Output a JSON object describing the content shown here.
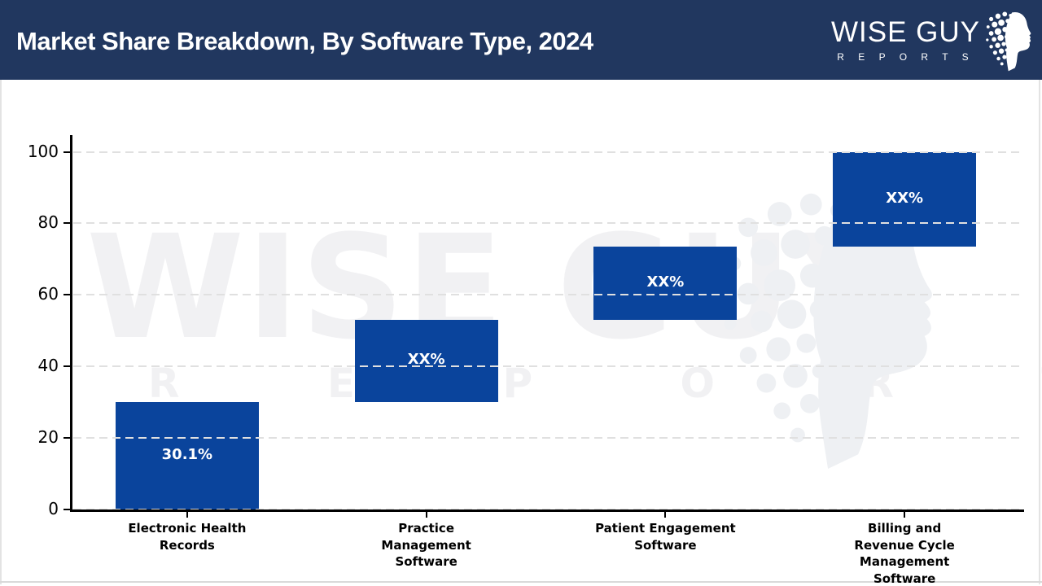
{
  "header": {
    "title": "Market Share Breakdown, By Software Type, 2024",
    "logo": {
      "name": "WISE GUY",
      "sub": "R E P O R T S"
    }
  },
  "watermark": {
    "word": "WISE GUY",
    "sub": "R E P O R T S"
  },
  "chart_data": {
    "type": "bar",
    "subtype": "waterfall",
    "title": "Market Share Breakdown, By Software Type, 2024",
    "categories": [
      "Electronic Health\nRecords",
      "Practice\nManagement\nSoftware",
      "Patient Engagement\nSoftware",
      "Billing and\nRevenue Cycle\nManagement\nSoftware"
    ],
    "segments": [
      {
        "category": "Electronic Health Records",
        "start": 0,
        "end": 30.1,
        "label": "30.1%"
      },
      {
        "category": "Practice Management Software",
        "start": 30.1,
        "end": 53.1,
        "label": "XX%"
      },
      {
        "category": "Patient Engagement Software",
        "start": 53.1,
        "end": 73.5,
        "label": "XX%"
      },
      {
        "category": "Billing and Revenue Cycle Management Software",
        "start": 73.5,
        "end": 100,
        "label": "XX%"
      }
    ],
    "yticks": [
      0,
      20,
      40,
      60,
      80,
      100
    ],
    "ylim": [
      0,
      104.5
    ],
    "xlabel": "",
    "ylabel": "",
    "legend": "none",
    "grid": "horizontal-dashed",
    "bar_color": "#0a449c",
    "bar_label_color": "#ffffff"
  },
  "colors": {
    "header_bg": "#21375f",
    "bar": "#0a449c",
    "grid": "#e0e0e0",
    "axis": "#000000",
    "watermark": "#f1f1f3"
  }
}
